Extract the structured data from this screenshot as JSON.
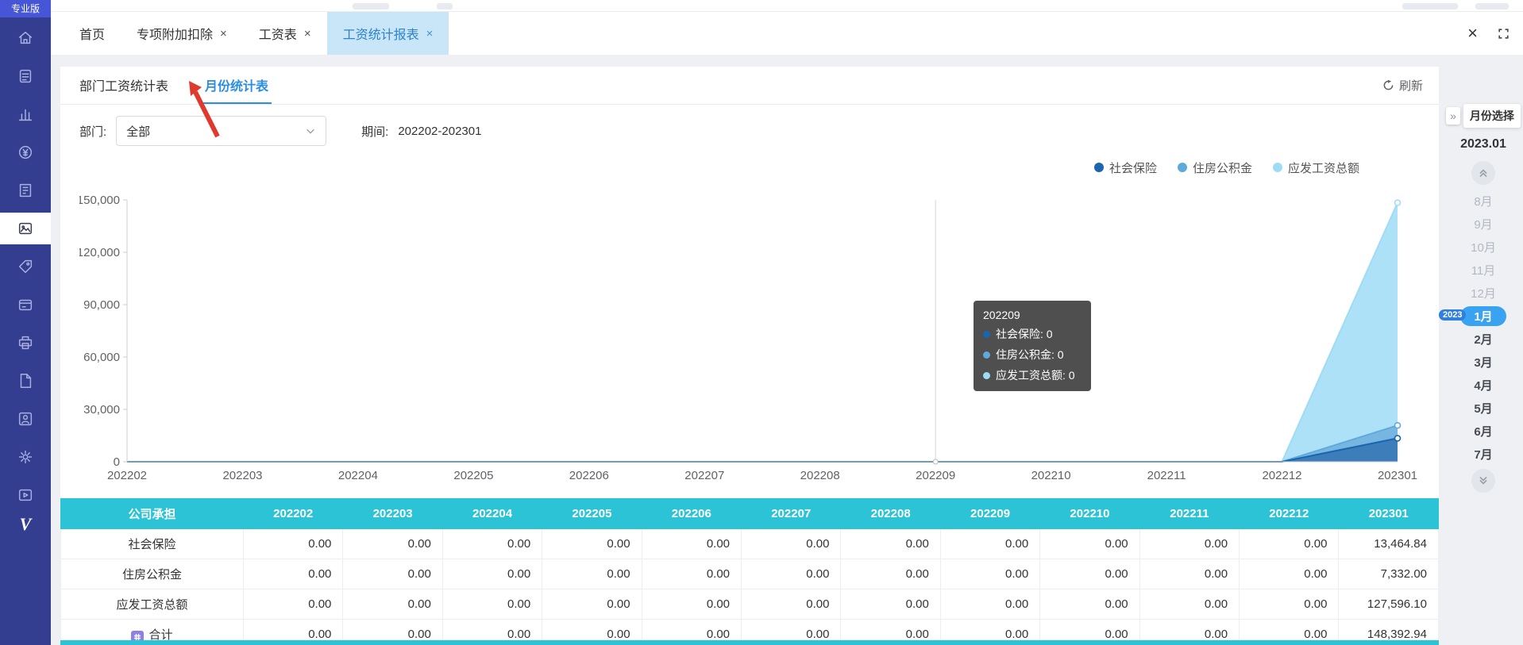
{
  "app": {
    "edition_badge": "专业版"
  },
  "sidebar": {
    "items": [
      {
        "icon": "home"
      },
      {
        "icon": "ledger"
      },
      {
        "icon": "chart"
      },
      {
        "icon": "fund"
      },
      {
        "icon": "invoice"
      },
      {
        "icon": "report",
        "active": true
      },
      {
        "icon": "goods"
      },
      {
        "icon": "tax-card"
      },
      {
        "icon": "print"
      },
      {
        "icon": "doc"
      },
      {
        "icon": "contacts"
      },
      {
        "icon": "settings"
      },
      {
        "icon": "video"
      }
    ],
    "logo": "V"
  },
  "tabbar": {
    "tabs": [
      {
        "label": "首页",
        "closable": false,
        "active": false
      },
      {
        "label": "专项附加扣除",
        "closable": true,
        "active": false
      },
      {
        "label": "工资表",
        "closable": true,
        "active": false
      },
      {
        "label": "工资统计报表",
        "closable": true,
        "active": true
      }
    ],
    "close_all_icon": "×"
  },
  "subtabs": {
    "items": [
      {
        "label": "部门工资统计表",
        "active": false
      },
      {
        "label": "月份统计表",
        "active": true
      }
    ],
    "refresh_label": "刷新"
  },
  "filters": {
    "dept_label": "部门:",
    "dept_value": "全部",
    "period_label": "期间:",
    "period_value": "202202-202301"
  },
  "chart_data": {
    "type": "area",
    "stacked": true,
    "x": [
      "202202",
      "202203",
      "202204",
      "202205",
      "202206",
      "202207",
      "202208",
      "202209",
      "202210",
      "202211",
      "202212",
      "202301"
    ],
    "series": [
      {
        "name": "社会保险",
        "color": "#1a66ae",
        "values": [
          0,
          0,
          0,
          0,
          0,
          0,
          0,
          0,
          0,
          0,
          0,
          13464.84
        ]
      },
      {
        "name": "住房公积金",
        "color": "#5fa9dc",
        "values": [
          0,
          0,
          0,
          0,
          0,
          0,
          0,
          0,
          0,
          0,
          0,
          7332.0
        ]
      },
      {
        "name": "应发工资总额",
        "color": "#9edcf6",
        "values": [
          0,
          0,
          0,
          0,
          0,
          0,
          0,
          0,
          0,
          0,
          0,
          127596.1
        ]
      }
    ],
    "ylim": [
      0,
      150000
    ],
    "ytick_step": 30000,
    "ytick_labels": [
      "0",
      "30,000",
      "60,000",
      "90,000",
      "120,000",
      "150,000"
    ],
    "legend_position": "top-right",
    "grid": false,
    "crosshair_x": "202209"
  },
  "tooltip": {
    "title": "202209",
    "rows": [
      {
        "name": "社会保险",
        "value": "0"
      },
      {
        "name": "住房公积金",
        "value": "0"
      },
      {
        "name": "应发工资总额",
        "value": "0"
      }
    ]
  },
  "table": {
    "headers": [
      "公司承担",
      "202202",
      "202203",
      "202204",
      "202205",
      "202206",
      "202207",
      "202208",
      "202209",
      "202210",
      "202211",
      "202212",
      "202301"
    ],
    "rows": [
      {
        "label": "社会保险",
        "has_icon": false,
        "values": [
          "0.00",
          "0.00",
          "0.00",
          "0.00",
          "0.00",
          "0.00",
          "0.00",
          "0.00",
          "0.00",
          "0.00",
          "0.00",
          "13,464.84"
        ]
      },
      {
        "label": "住房公积金",
        "has_icon": false,
        "values": [
          "0.00",
          "0.00",
          "0.00",
          "0.00",
          "0.00",
          "0.00",
          "0.00",
          "0.00",
          "0.00",
          "0.00",
          "0.00",
          "7,332.00"
        ]
      },
      {
        "label": "应发工资总额",
        "has_icon": false,
        "values": [
          "0.00",
          "0.00",
          "0.00",
          "0.00",
          "0.00",
          "0.00",
          "0.00",
          "0.00",
          "0.00",
          "0.00",
          "0.00",
          "127,596.10"
        ]
      },
      {
        "label": "合计",
        "has_icon": true,
        "values": [
          "0.00",
          "0.00",
          "0.00",
          "0.00",
          "0.00",
          "0.00",
          "0.00",
          "0.00",
          "0.00",
          "0.00",
          "0.00",
          "148,392.94"
        ]
      }
    ]
  },
  "month_panel": {
    "collapse_icon": "»",
    "title": "月份选择",
    "current": "2023.01",
    "year_badge": "2023",
    "months": [
      {
        "label": "8月",
        "state": "muted"
      },
      {
        "label": "9月",
        "state": "muted"
      },
      {
        "label": "10月",
        "state": "muted"
      },
      {
        "label": "11月",
        "state": "muted"
      },
      {
        "label": "12月",
        "state": "muted"
      },
      {
        "label": "1月",
        "state": "active"
      },
      {
        "label": "2月",
        "state": "normal"
      },
      {
        "label": "3月",
        "state": "normal"
      },
      {
        "label": "4月",
        "state": "normal"
      },
      {
        "label": "5月",
        "state": "normal"
      },
      {
        "label": "6月",
        "state": "normal"
      },
      {
        "label": "7月",
        "state": "normal"
      }
    ]
  },
  "colors": {
    "accent": "#2a8ee5",
    "active_tab_bg": "#c9e6f8",
    "table_header": "#2cc3d6",
    "sidebar": "#343e90",
    "active_month": "#3aa3f1"
  }
}
